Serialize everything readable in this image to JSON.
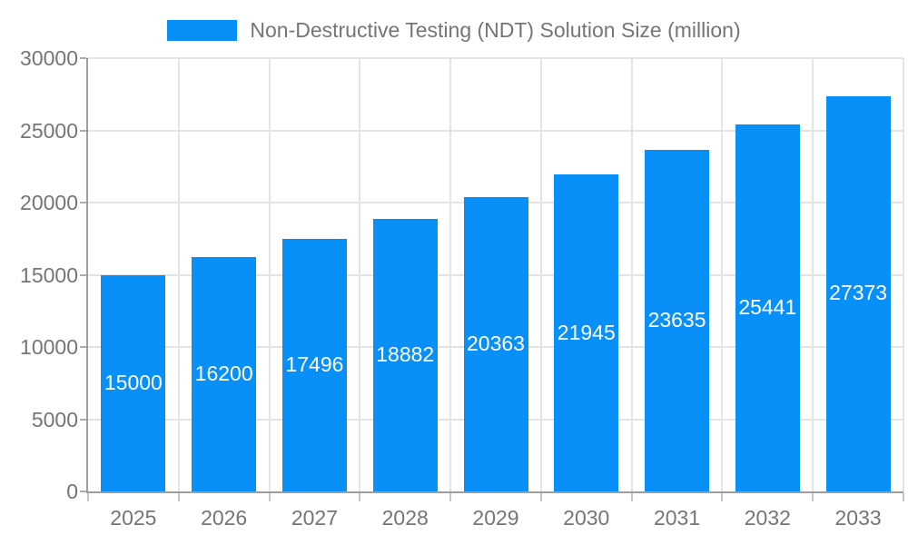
{
  "chart_data": {
    "type": "bar",
    "title": "Non-Destructive Testing (NDT) Solution Size (million)",
    "legend_label": "Non-Destructive Testing (NDT) Solution Size (million)",
    "legend_position": "top",
    "categories": [
      "2025",
      "2026",
      "2027",
      "2028",
      "2029",
      "2030",
      "2031",
      "2032",
      "2033"
    ],
    "values": [
      15000,
      16200,
      17496,
      18882,
      20363,
      21945,
      23635,
      25441,
      27373
    ],
    "xlabel": "",
    "ylabel": "",
    "ylim": [
      0,
      30000
    ],
    "yticks": [
      0,
      5000,
      10000,
      15000,
      20000,
      25000,
      30000
    ],
    "grid": true,
    "bar_value_labels": "inside-center",
    "colors": {
      "bar": "#0890f8",
      "bar_label": "#ffffff",
      "axis_text": "#757575",
      "gridline": "#e4e4e4",
      "axis_line": "#9e9e9e",
      "background": "#ffffff"
    }
  }
}
